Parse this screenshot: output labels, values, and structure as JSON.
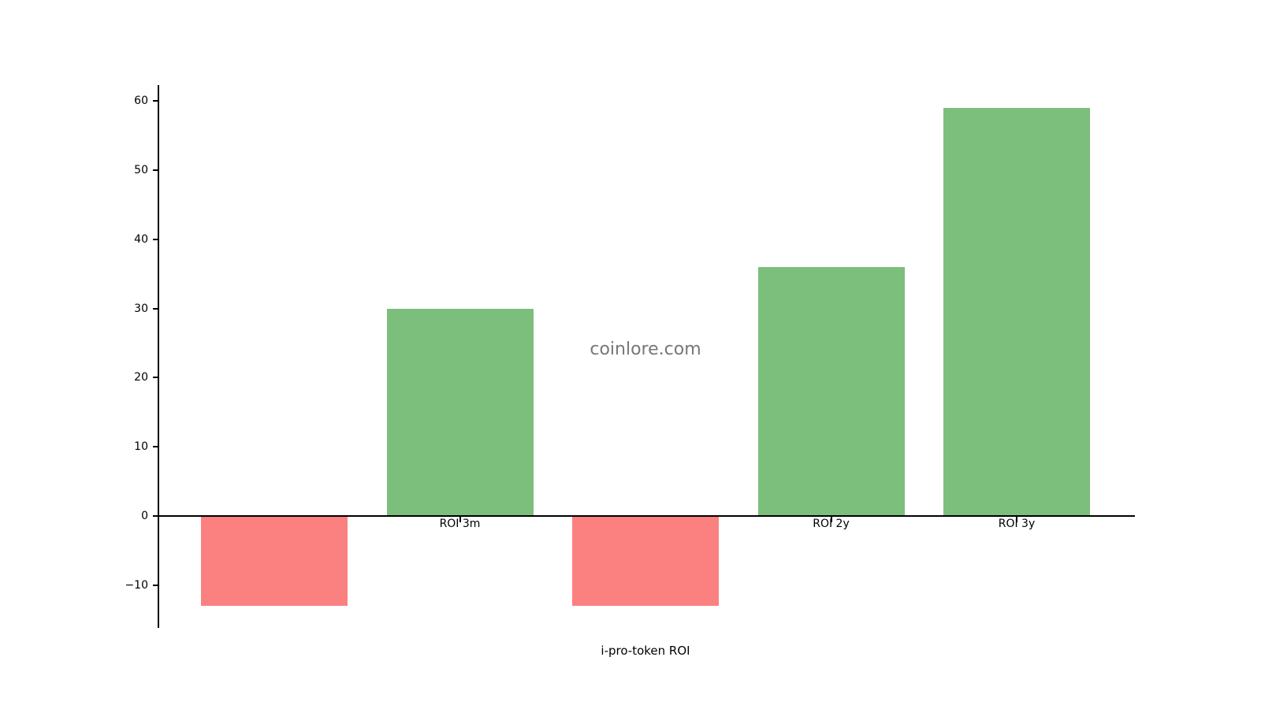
{
  "watermark": "coinlore.com",
  "chart_data": {
    "type": "bar",
    "title": "",
    "xlabel": "i-pro-token ROI",
    "ylabel": "",
    "categories": [
      "",
      "ROI 3m",
      "",
      "ROI 2y",
      "ROI 3y"
    ],
    "values": [
      -13,
      30,
      -13,
      36,
      59
    ],
    "yticks": [
      60,
      50,
      40,
      30,
      20,
      10,
      0,
      -10
    ],
    "ylim": [
      -17,
      62
    ],
    "grid": false,
    "legend": "none",
    "bar_color_positive": "#7cbe7c",
    "bar_color_negative": "#fb8080",
    "axis_color": "#000000",
    "watermark_color": "#777777"
  }
}
